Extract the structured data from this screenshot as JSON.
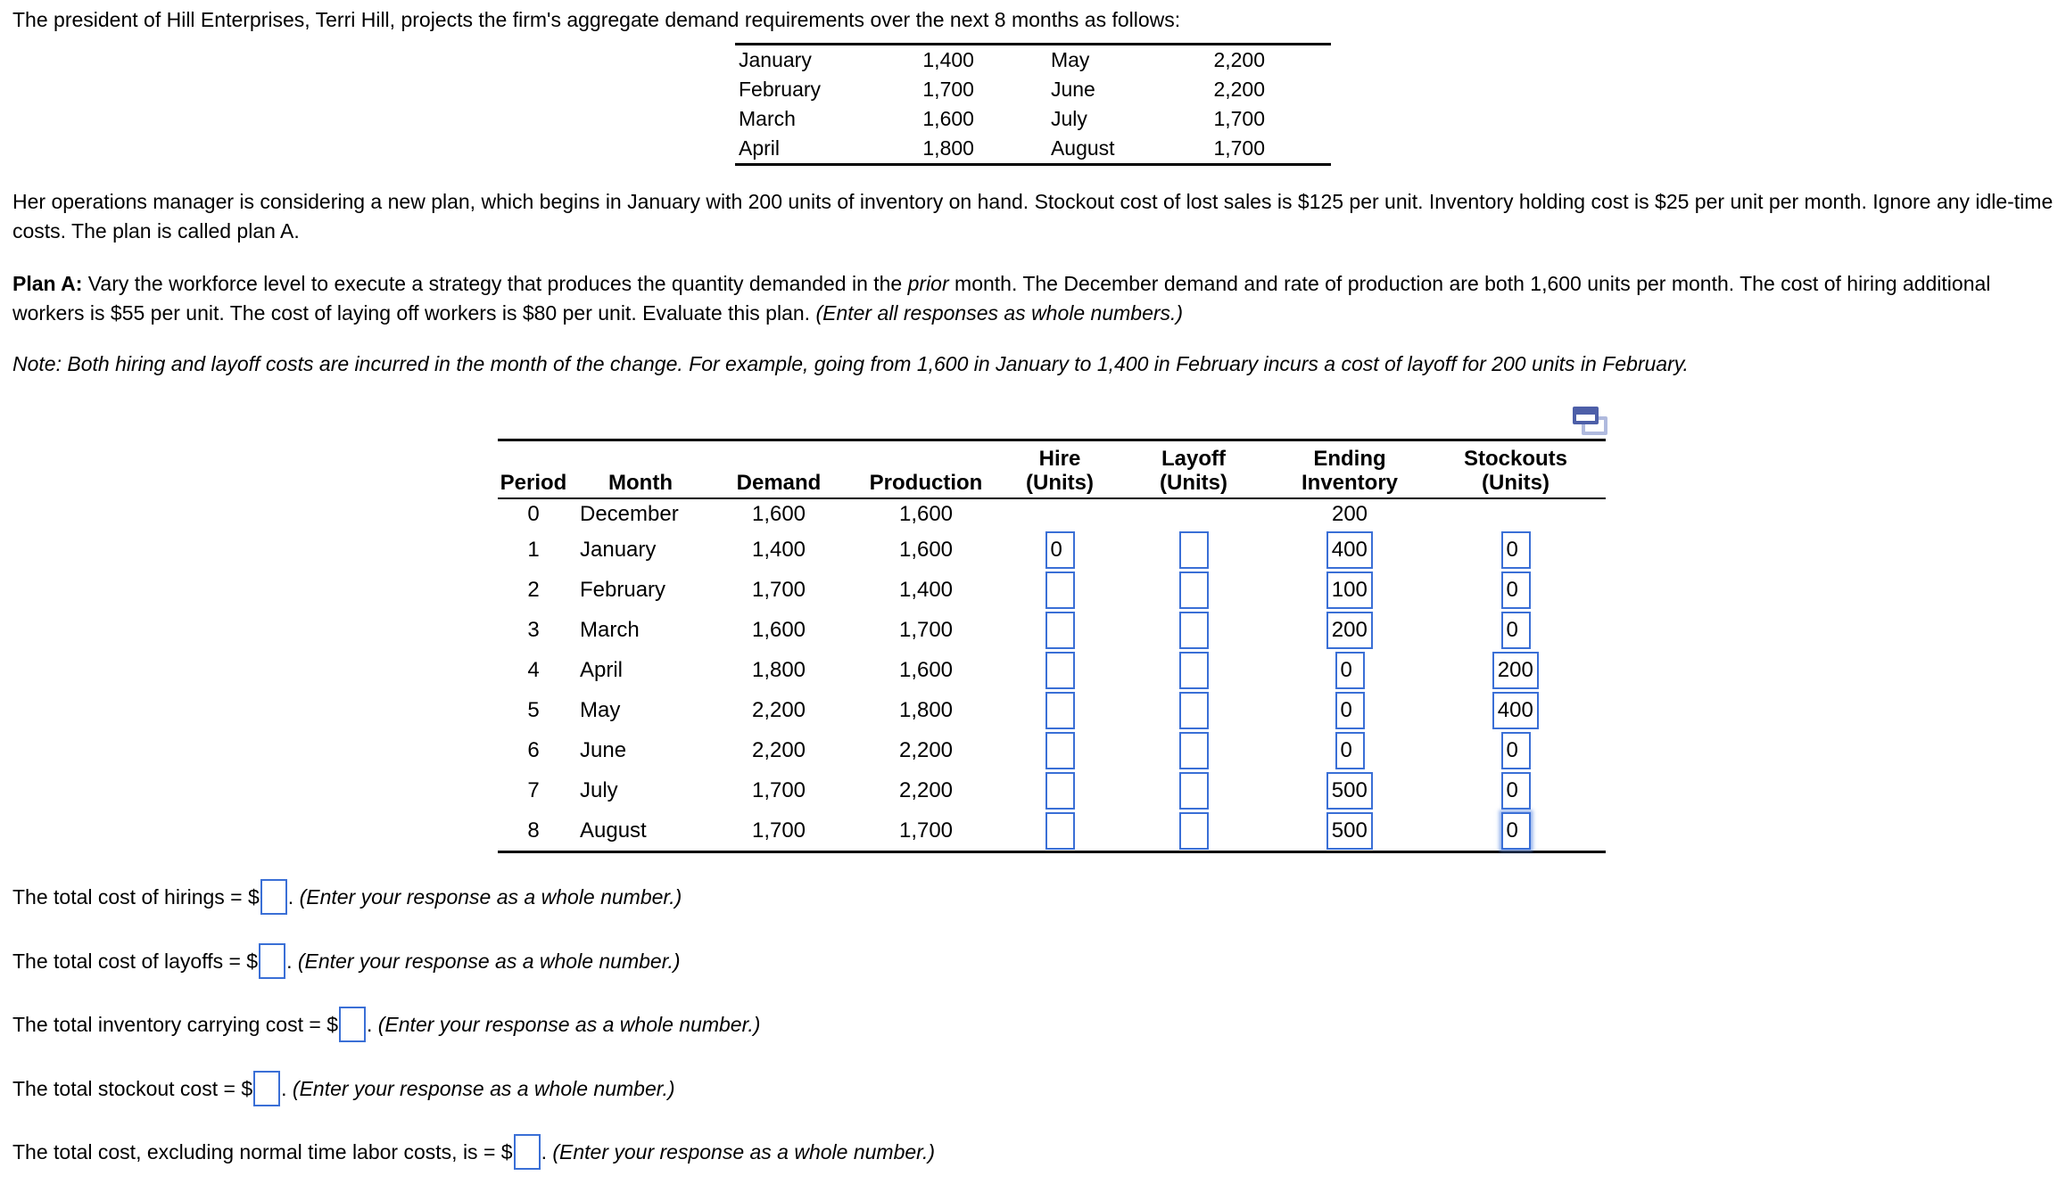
{
  "page": {
    "intro": "The president of Hill Enterprises, Terri Hill, projects the firm's aggregate demand requirements over the next 8 months as follows:",
    "operations_paragraph": "Her operations manager is considering a new plan, which begins in January with 200 units of inventory on hand. Stockout cost of lost sales is $125 per unit. Inventory holding cost is $25 per unit per month. Ignore any idle-time costs. The plan is called plan A.",
    "plan_a": {
      "label": "Plan A:",
      "text1": " Vary the workforce level to execute a strategy that produces the quantity demanded in the ",
      "italic1": "prior",
      "text2": " month. The December demand and rate of production are both 1,600 units per month. The cost of hiring additional workers is $55 per unit. The cost of laying off workers is $80 per unit. Evaluate this plan. ",
      "italic2": "(Enter all responses as whole numbers.)"
    },
    "note": "Note: Both hiring and layoff costs are incurred in the month of the change. For example, going from 1,600 in January to 1,400 in February incurs a cost of layoff for 200 units in February."
  },
  "demand_table": {
    "rows": [
      [
        "January",
        "1,400",
        "May",
        "2,200"
      ],
      [
        "February",
        "1,700",
        "June",
        "2,200"
      ],
      [
        "March",
        "1,600",
        "July",
        "1,700"
      ],
      [
        "April",
        "1,800",
        "August",
        "1,700"
      ]
    ]
  },
  "icons": {
    "popout_icon": "open-table-popout"
  },
  "colors": {
    "input_border": "#3a6fd6",
    "focus_glow": "#608ce4",
    "icon_dark": "#4d5fa8",
    "icon_light": "#b0bade"
  },
  "main_table": {
    "headers": {
      "period": "Period",
      "month": "Month",
      "demand": "Demand",
      "production": "Production",
      "hire_line1": "Hire",
      "hire_line2": "(Units)",
      "layoff_line1": "Layoff",
      "layoff_line2": "(Units)",
      "ending_line1": "Ending",
      "ending_line2": "Inventory",
      "stock_line1": "Stockouts",
      "stock_line2": "(Units)"
    },
    "rows": [
      {
        "period": "0",
        "month": "December",
        "demand": "1,600",
        "production": "1,600",
        "hire": null,
        "layoff": null,
        "ending": {
          "text": "200"
        },
        "stock": null
      },
      {
        "period": "1",
        "month": "January",
        "demand": "1,400",
        "production": "1,600",
        "hire": {
          "box": "0"
        },
        "layoff": {
          "box": ""
        },
        "ending": {
          "box": "400"
        },
        "stock": {
          "box": "0"
        }
      },
      {
        "period": "2",
        "month": "February",
        "demand": "1,700",
        "production": "1,400",
        "hire": {
          "box": ""
        },
        "layoff": {
          "box": ""
        },
        "ending": {
          "box": "100"
        },
        "stock": {
          "box": "0"
        }
      },
      {
        "period": "3",
        "month": "March",
        "demand": "1,600",
        "production": "1,700",
        "hire": {
          "box": ""
        },
        "layoff": {
          "box": ""
        },
        "ending": {
          "box": "200"
        },
        "stock": {
          "box": "0"
        }
      },
      {
        "period": "4",
        "month": "April",
        "demand": "1,800",
        "production": "1,600",
        "hire": {
          "box": ""
        },
        "layoff": {
          "box": ""
        },
        "ending": {
          "box": "0"
        },
        "stock": {
          "box": "200"
        }
      },
      {
        "period": "5",
        "month": "May",
        "demand": "2,200",
        "production": "1,800",
        "hire": {
          "box": ""
        },
        "layoff": {
          "box": ""
        },
        "ending": {
          "box": "0"
        },
        "stock": {
          "box": "400"
        }
      },
      {
        "period": "6",
        "month": "June",
        "demand": "2,200",
        "production": "2,200",
        "hire": {
          "box": ""
        },
        "layoff": {
          "box": ""
        },
        "ending": {
          "box": "0"
        },
        "stock": {
          "box": "0"
        }
      },
      {
        "period": "7",
        "month": "July",
        "demand": "1,700",
        "production": "2,200",
        "hire": {
          "box": ""
        },
        "layoff": {
          "box": ""
        },
        "ending": {
          "box": "500"
        },
        "stock": {
          "box": "0"
        }
      },
      {
        "period": "8",
        "month": "August",
        "demand": "1,700",
        "production": "1,700",
        "hire": {
          "box": ""
        },
        "layoff": {
          "box": ""
        },
        "ending": {
          "box": "500"
        },
        "stock": {
          "box": "0",
          "focused": true
        }
      }
    ]
  },
  "questions": [
    {
      "prefix": "The total cost of hirings = $",
      "value": "",
      "after": ". ",
      "note": "(Enter your response as a whole number.)"
    },
    {
      "prefix": "The total cost of layoffs = $",
      "value": "",
      "after": ". ",
      "note": "(Enter your response as a whole number.)"
    },
    {
      "prefix": "The total inventory carrying cost = $",
      "value": "",
      "after": ". ",
      "note": "(Enter your response as a whole number.)"
    },
    {
      "prefix": "The total stockout cost = $",
      "value": "",
      "after": ". ",
      "note": "(Enter your response as a whole number.)"
    },
    {
      "prefix": "The total cost, excluding normal time labor costs, is = $",
      "value": "",
      "after": ". ",
      "note": "(Enter your response as a whole number.)"
    }
  ]
}
